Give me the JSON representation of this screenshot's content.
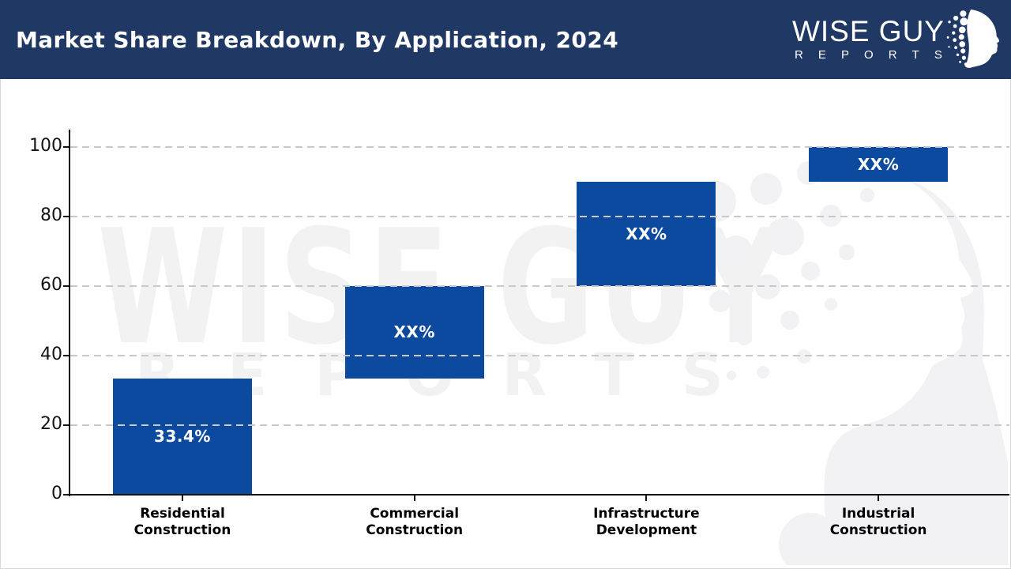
{
  "header": {
    "title": "Market Share Breakdown, By Application, 2024",
    "bg_color": "#1f3864",
    "logo": {
      "name": "WISE GUY",
      "sub": "REPORTS"
    }
  },
  "watermark": {
    "line1": "WISE GUY",
    "line2": "REPORTS"
  },
  "chart_data": {
    "type": "bar",
    "subtype": "floating-waterfall",
    "title": "Market Share Breakdown, By Application, 2024",
    "categories": [
      "Residential Construction",
      "Commercial Construction",
      "Infrastructure Development",
      "Industrial Construction"
    ],
    "category_lines": [
      [
        "Residential",
        "Construction"
      ],
      [
        "Commercial",
        "Construction"
      ],
      [
        "Infrastructure",
        "Development"
      ],
      [
        "Industrial",
        "Construction"
      ]
    ],
    "bars": [
      {
        "category": "Residential Construction",
        "start": 0,
        "end": 33.4,
        "label": "33.4%"
      },
      {
        "category": "Commercial Construction",
        "start": 33.4,
        "end": 60,
        "label": "XX%"
      },
      {
        "category": "Infrastructure Development",
        "start": 60,
        "end": 90,
        "label": "XX%"
      },
      {
        "category": "Industrial Construction",
        "start": 90,
        "end": 100,
        "label": "XX%"
      }
    ],
    "ylim": [
      0,
      100
    ],
    "yticks": [
      0,
      20,
      40,
      60,
      80,
      100
    ],
    "xlabel": "",
    "ylabel": "",
    "legend": "none",
    "grid": {
      "horizontal": true,
      "style": "dashed",
      "drawn_above_bars": true
    },
    "colors": {
      "bar": "#0b4a9e",
      "bar_label": "#ffffff",
      "grid_line": "#c9c9c9",
      "axis_line": "#111111",
      "tick_text": "#141414",
      "category_text": "#000000"
    }
  }
}
